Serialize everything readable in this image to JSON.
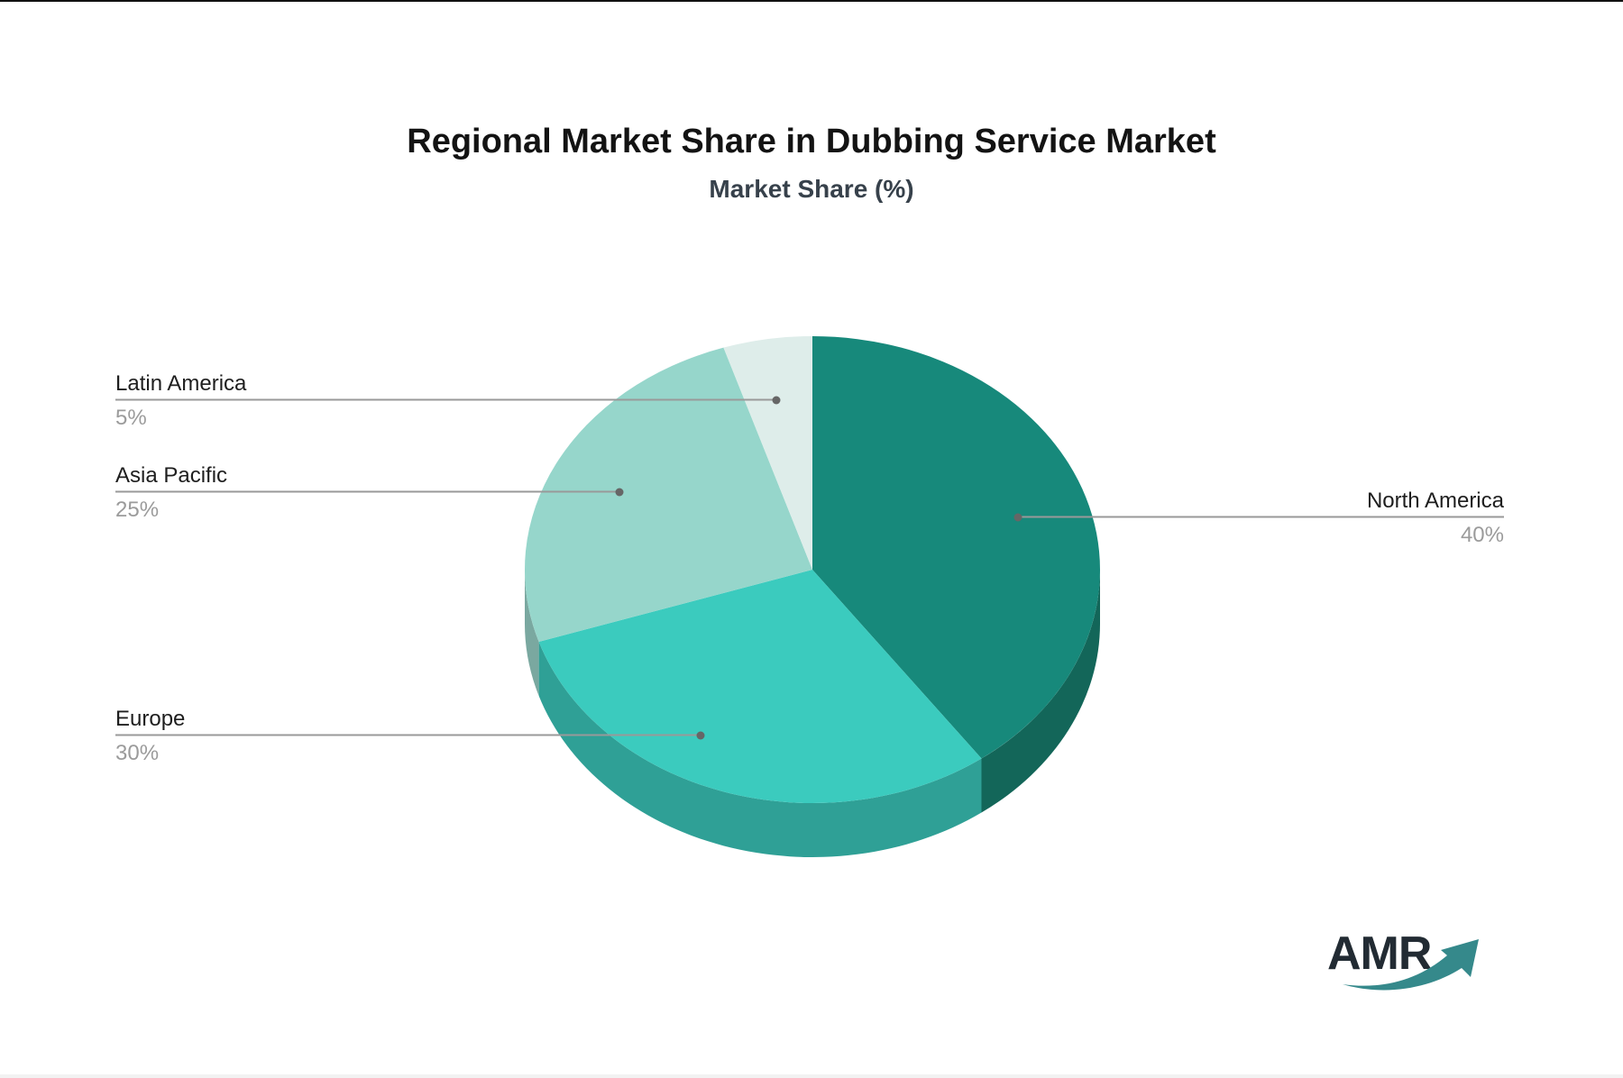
{
  "chart_data": {
    "type": "pie",
    "title": "Regional Market Share in Dubbing Service Market",
    "subtitle": "Market Share (%)",
    "unit": "%",
    "style": "3d",
    "start_angle_deg": -90,
    "direction": "clockwise",
    "legend": "none",
    "labels": "leader-lines",
    "categories": [
      "North America",
      "Europe",
      "Asia Pacific",
      "Latin America"
    ],
    "values": [
      40,
      30,
      25,
      5
    ],
    "slices": [
      {
        "label": "North America",
        "value": 40,
        "display": "40%",
        "color": "#17897B",
        "side_color": "#136659",
        "label_side": "right"
      },
      {
        "label": "Europe",
        "value": 30,
        "display": "30%",
        "color": "#3BCBBE",
        "side_color": "#2FA096",
        "label_side": "left"
      },
      {
        "label": "Asia Pacific",
        "value": 25,
        "display": "25%",
        "color": "#96D6CB",
        "side_color": "#7AA8A0",
        "label_side": "left"
      },
      {
        "label": "Latin America",
        "value": 5,
        "display": "5%",
        "color": "#DEEDEA",
        "side_color": "#C6DCD7",
        "label_side": "left"
      }
    ]
  },
  "logo": {
    "text": "AMR"
  },
  "theme": {
    "background": "#FFFFFF",
    "title_text": "#131313",
    "subtitle_text": "#37414B",
    "label_text": "#1E1E1E",
    "percent_text": "#9B9B9B",
    "leader_line": "#999999",
    "leader_dot": "#666666",
    "logo_text": "#222B33",
    "logo_arrow": "#35898B",
    "frame_top": "#111111",
    "frame_bottom": "#F2F2F2"
  }
}
